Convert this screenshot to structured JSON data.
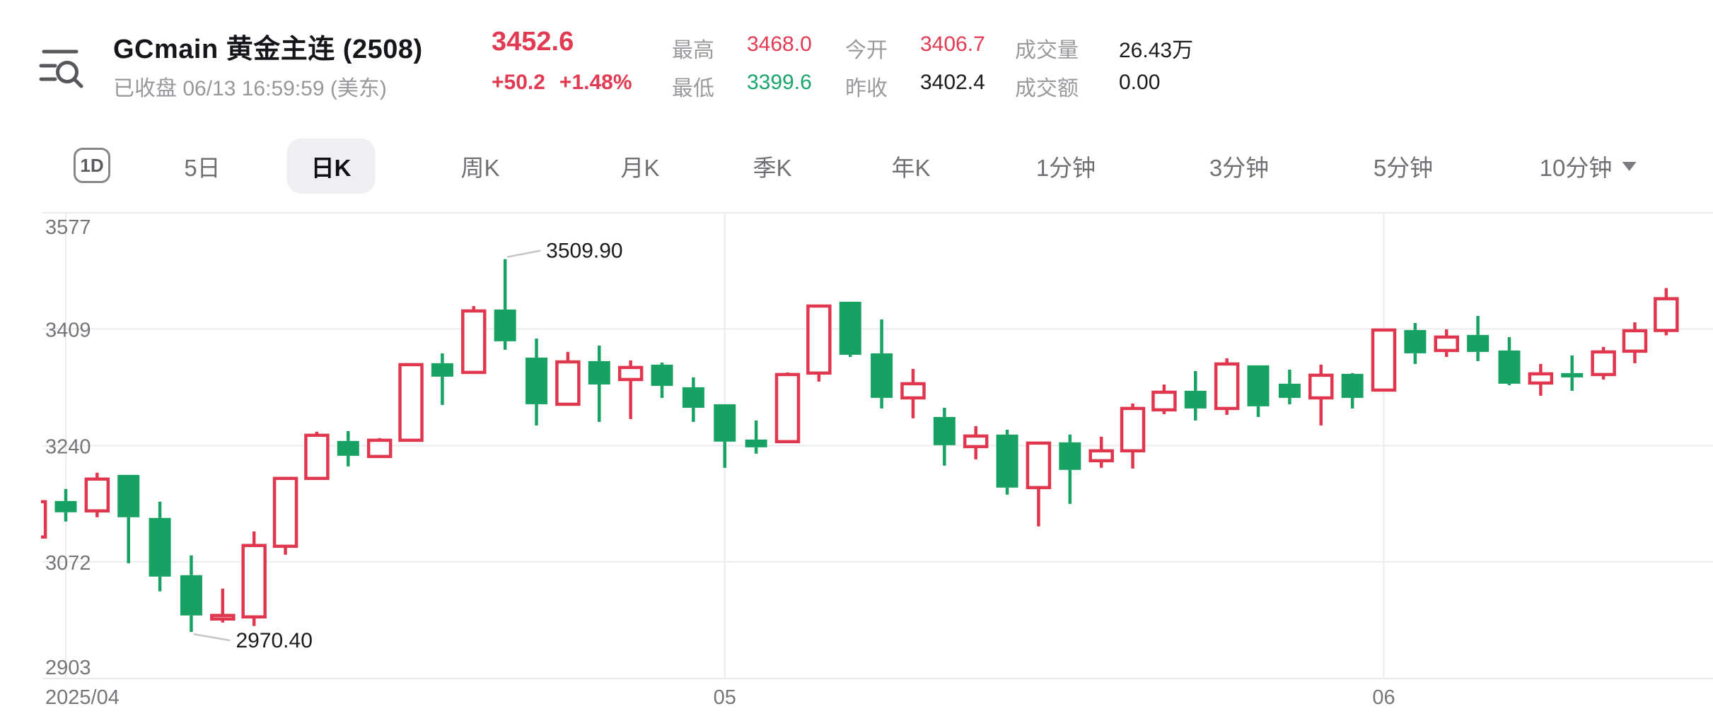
{
  "header": {
    "symbol": "GCmain 黄金主连 (2508)",
    "price": "3452.6",
    "status": "已收盘 06/13 16:59:59 (美东)",
    "change": "+50.2",
    "change_pct": "+1.48%",
    "stats": [
      {
        "label": "最高",
        "value": "3468.0",
        "color": "red"
      },
      {
        "label": "今开",
        "value": "3406.7",
        "color": "red"
      },
      {
        "label": "成交量",
        "value": "26.43万",
        "color": "dark"
      },
      {
        "label": "最低",
        "value": "3399.6",
        "color": "green"
      },
      {
        "label": "昨收",
        "value": "3402.4",
        "color": "dark"
      },
      {
        "label": "成交额",
        "value": "0.00",
        "color": "dark"
      }
    ]
  },
  "tabs": {
    "range_icon_label": "1D",
    "items": [
      {
        "label": "5日"
      },
      {
        "label": "日K",
        "active": true
      },
      {
        "label": "周K"
      },
      {
        "label": "月K"
      },
      {
        "label": "季K"
      },
      {
        "label": "年K"
      },
      {
        "label": "1分钟"
      },
      {
        "label": "3分钟"
      },
      {
        "label": "5分钟"
      },
      {
        "label": "10分钟",
        "dropdown": true
      }
    ]
  },
  "chart_data": {
    "type": "candlestick",
    "title": "GCmain 黄金主连 (2508) 日K",
    "ylabel": "",
    "xlabel": "",
    "grid": true,
    "y_ticks": [
      3577,
      3409,
      3240,
      3072,
      2903
    ],
    "y_range": [
      2903,
      3577
    ],
    "x_ticks": [
      {
        "label": "2025/04",
        "index": 1
      },
      {
        "label": "05",
        "index": 22
      },
      {
        "label": "06",
        "index": 43
      }
    ],
    "annotations": [
      {
        "text": "3509.90",
        "index": 15,
        "side": "high",
        "price": 3509.9
      },
      {
        "text": "2970.40",
        "index": 5,
        "side": "low",
        "price": 2970.4
      }
    ],
    "up_color": "#e0364e",
    "down_color": "#17a263",
    "candles_format": [
      "open",
      "high",
      "low",
      "close"
    ],
    "candles": [
      [
        3107.8,
        3158.9,
        3107.8,
        3158.9
      ],
      [
        3159.9,
        3177.3,
        3130.3,
        3143.6
      ],
      [
        3145.6,
        3200.8,
        3136.4,
        3191.6
      ],
      [
        3197.7,
        3197.7,
        3069.9,
        3136.4
      ],
      [
        3135.4,
        3158.9,
        3029.1,
        3050.5
      ],
      [
        3052.6,
        3081.2,
        2970.4,
        2994.3
      ],
      [
        2989.2,
        3033.1,
        2984.1,
        2994.3
      ],
      [
        2992.2,
        3115.9,
        2979.0,
        3095.5
      ],
      [
        3094.4,
        3192.6,
        3082.2,
        3192.6
      ],
      [
        3192.6,
        3260.1,
        3192.6,
        3255.0
      ],
      [
        3246.8,
        3261.1,
        3210.0,
        3225.3
      ],
      [
        3224.3,
        3250.9,
        3224.3,
        3247.8
      ],
      [
        3247.8,
        3357.2,
        3245.8,
        3357.2
      ],
      [
        3359.3,
        3373.6,
        3298.9,
        3339.8
      ],
      [
        3346.0,
        3442.0,
        3345.0,
        3434.9
      ],
      [
        3437.0,
        3509.9,
        3378.7,
        3391.0
      ],
      [
        3367.4,
        3394.9,
        3269.2,
        3299.9
      ],
      [
        3299.9,
        3375.6,
        3299.9,
        3361.2
      ],
      [
        3362.3,
        3384.8,
        3274.4,
        3328.5
      ],
      [
        3335.7,
        3363.3,
        3278.5,
        3353.1
      ],
      [
        3357.2,
        3360.2,
        3309.1,
        3326.5
      ],
      [
        3324.5,
        3338.8,
        3274.4,
        3294.8
      ],
      [
        3299.9,
        3299.9,
        3207.9,
        3245.8
      ],
      [
        3248.8,
        3276.4,
        3228.4,
        3237.6
      ],
      [
        3245.8,
        3345.9,
        3243.7,
        3342.9
      ],
      [
        3345.0,
        3444.1,
        3332.7,
        3442.0
      ],
      [
        3448.2,
        3448.2,
        3368.4,
        3371.5
      ],
      [
        3373.6,
        3422.6,
        3293.8,
        3309.1
      ],
      [
        3309.1,
        3351.0,
        3279.5,
        3329.6
      ],
      [
        3281.5,
        3294.8,
        3211.0,
        3240.7
      ],
      [
        3238.6,
        3268.2,
        3220.2,
        3253.9
      ],
      [
        3256.0,
        3263.1,
        3169.1,
        3179.3
      ],
      [
        3179.3,
        3243.7,
        3123.1,
        3243.7
      ],
      [
        3244.8,
        3256.0,
        3155.8,
        3204.9
      ],
      [
        3218.2,
        3252.9,
        3207.9,
        3232.5
      ],
      [
        3232.5,
        3301.0,
        3206.9,
        3293.8
      ],
      [
        3291.8,
        3328.5,
        3285.6,
        3317.3
      ],
      [
        3319.4,
        3348.0,
        3276.4,
        3293.8
      ],
      [
        3293.8,
        3366.4,
        3284.6,
        3358.2
      ],
      [
        3356.2,
        3356.2,
        3281.5,
        3296.9
      ],
      [
        3329.6,
        3350.0,
        3299.9,
        3309.1
      ],
      [
        3309.1,
        3357.2,
        3269.3,
        3341.9
      ],
      [
        3343.9,
        3345.0,
        3293.8,
        3309.1
      ],
      [
        3320.4,
        3407.3,
        3319.4,
        3407.3
      ],
      [
        3407.3,
        3417.5,
        3358.2,
        3373.6
      ],
      [
        3377.7,
        3408.3,
        3368.4,
        3397.1
      ],
      [
        3400.2,
        3427.7,
        3362.3,
        3375.6
      ],
      [
        3377.7,
        3397.1,
        3327.5,
        3329.6
      ],
      [
        3330.6,
        3358.2,
        3312.2,
        3343.9
      ],
      [
        3345.0,
        3370.5,
        3319.4,
        3338.8
      ],
      [
        3342.9,
        3382.8,
        3335.7,
        3375.6
      ],
      [
        3376.7,
        3418.5,
        3359.2,
        3406.3
      ],
      [
        3406.7,
        3468.0,
        3399.6,
        3452.6
      ]
    ]
  },
  "colors": {
    "up": "#e0364e",
    "down": "#17a263",
    "value_red": "#e23a52",
    "value_green": "#18a56a",
    "value_dark": "#1b1b1b",
    "label_gray": "#9a9a9e",
    "grid": "#ebebee",
    "axis_text": "#75757a",
    "annotation_text": "#1b1b1b",
    "connector": "#c6c6c8",
    "active_tab_bg": "#efeff1"
  }
}
